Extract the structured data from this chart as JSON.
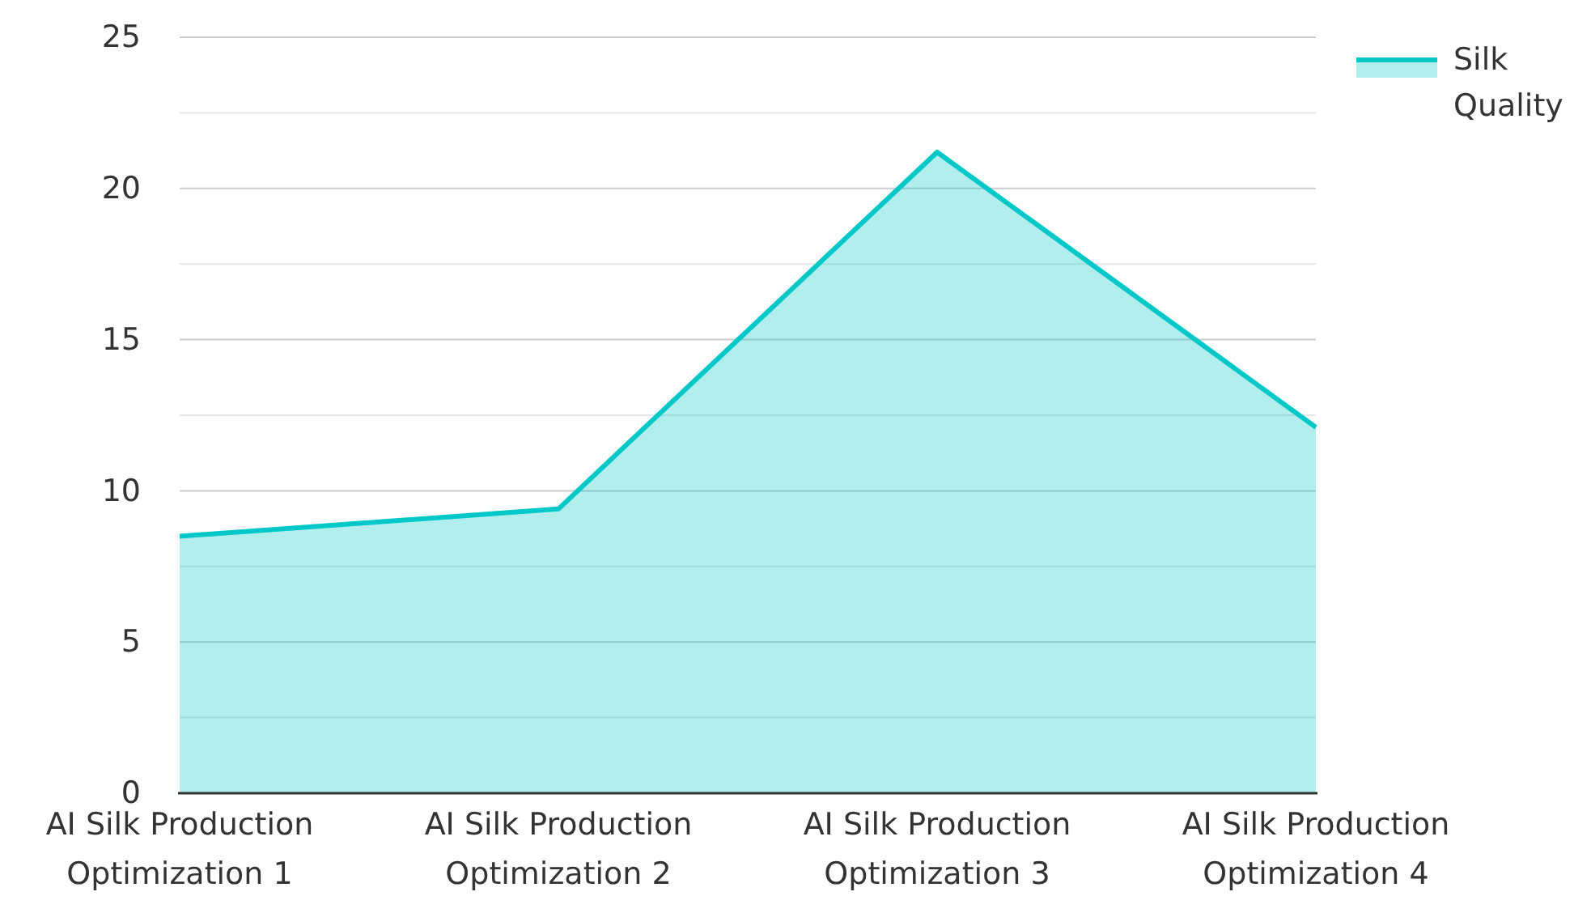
{
  "chart_data": {
    "type": "area",
    "categories": [
      "AI Silk Production Optimization 1",
      "AI Silk Production Optimization 2",
      "AI Silk Production Optimization 3",
      "AI Silk Production Optimization 4"
    ],
    "series": [
      {
        "name": "Silk Quality",
        "color": "#00c8c8",
        "values": [
          8.5,
          9.4,
          21.2,
          12.1
        ]
      }
    ],
    "ylim": [
      0,
      25
    ],
    "yticks": [
      0,
      {
        "value": 2.5,
        "label": null
      },
      5,
      {
        "value": 7.5,
        "label": null
      },
      10,
      {
        "value": 12.5,
        "label": null
      },
      15,
      {
        "value": 17.5,
        "label": null
      },
      20,
      {
        "value": 22.5,
        "label": null
      },
      25
    ],
    "grid": "y",
    "legend": "top right"
  }
}
